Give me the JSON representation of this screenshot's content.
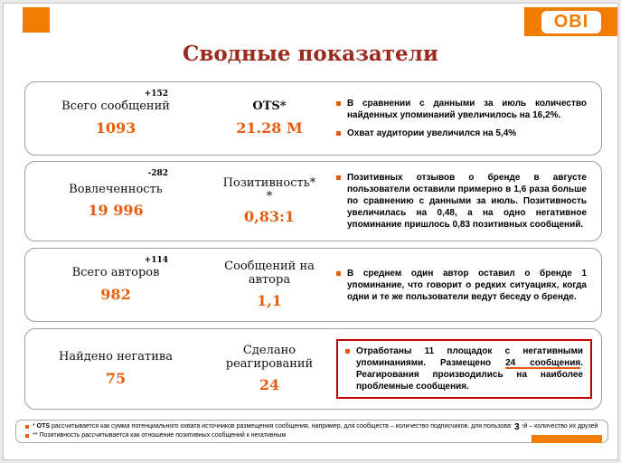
{
  "colors": {
    "accent": "#E85D0D",
    "brand_orange": "#F07C00",
    "title_red": "#9A2B1E",
    "alert_red": "#C00000"
  },
  "brand": {
    "logo_text": "OBI"
  },
  "title": "Сводные показатели",
  "page_number": "3",
  "rows": [
    {
      "metric1": {
        "label": "Всего сообщений",
        "delta": "+152",
        "value": "1093"
      },
      "metric2": {
        "label": "OTS*",
        "value": "21.28 М"
      },
      "bullets": [
        [
          {
            "t": "В сравнении с данными за июль количество найденных упоминаний увеличилось на "
          },
          {
            "t": "16,2%",
            "b": true
          },
          {
            "t": "."
          }
        ],
        [
          {
            "t": "Охват аудитории увеличился на "
          },
          {
            "t": "5,4%",
            "b": true
          }
        ]
      ]
    },
    {
      "metric1": {
        "label": "Вовлеченность",
        "delta": "-282",
        "value": "19 996"
      },
      "metric2": {
        "label": "Позитивность*",
        "label2": "*",
        "value": "0,83:1"
      },
      "bullets": [
        [
          {
            "t": "Позитивных отзывов о бренде в августе пользователи оставили примерно в "
          },
          {
            "t": "1,6",
            "b": true
          },
          {
            "t": " раза больше по сравнению с данными за июль. Позитивность увеличилась на "
          },
          {
            "t": "0,48",
            "b": true
          },
          {
            "t": ", а на одно негативное упоминание пришлось "
          },
          {
            "t": "0,83",
            "b": true
          },
          {
            "t": " позитивных сообщений."
          }
        ]
      ]
    },
    {
      "metric1": {
        "label": "Всего авторов",
        "delta": "+114",
        "value": "982"
      },
      "metric2": {
        "label": "Сообщений на автора",
        "value": "1,1"
      },
      "bullets": [
        [
          {
            "t": "В среднем один автор оставил о бренде "
          },
          {
            "t": "1",
            "b": true
          },
          {
            "t": " упоминание, что говорит о редких ситуациях, когда одни и те же пользователи ведут беседу о бренде."
          }
        ]
      ]
    },
    {
      "metric1": {
        "label": "Найдено негатива",
        "value": "75"
      },
      "metric2": {
        "label": "Сделано реагирований",
        "value": "24"
      },
      "bullets": [
        [
          {
            "t": "Отработаны "
          },
          {
            "t": "11",
            "b": true
          },
          {
            "t": " площадок с негативными упоминаниями. Размещено "
          },
          {
            "t": "24 сообщения",
            "b": true,
            "u": true
          },
          {
            "t": ". Реагирования производились на наиболее проблемные сообщения."
          }
        ]
      ]
    }
  ],
  "footnotes": [
    [
      {
        "t": "* "
      },
      {
        "t": "OTS",
        "b": true
      },
      {
        "t": " рассчитывается как сумма потенциального охвата источников размещения сообщения, например, для сообществ – количество подписчиков, для пользователей – количество их друзей"
      }
    ],
    [
      {
        "t": "** Позитивность рассчитывается как отношение позитивных сообщений к негативным"
      }
    ]
  ]
}
